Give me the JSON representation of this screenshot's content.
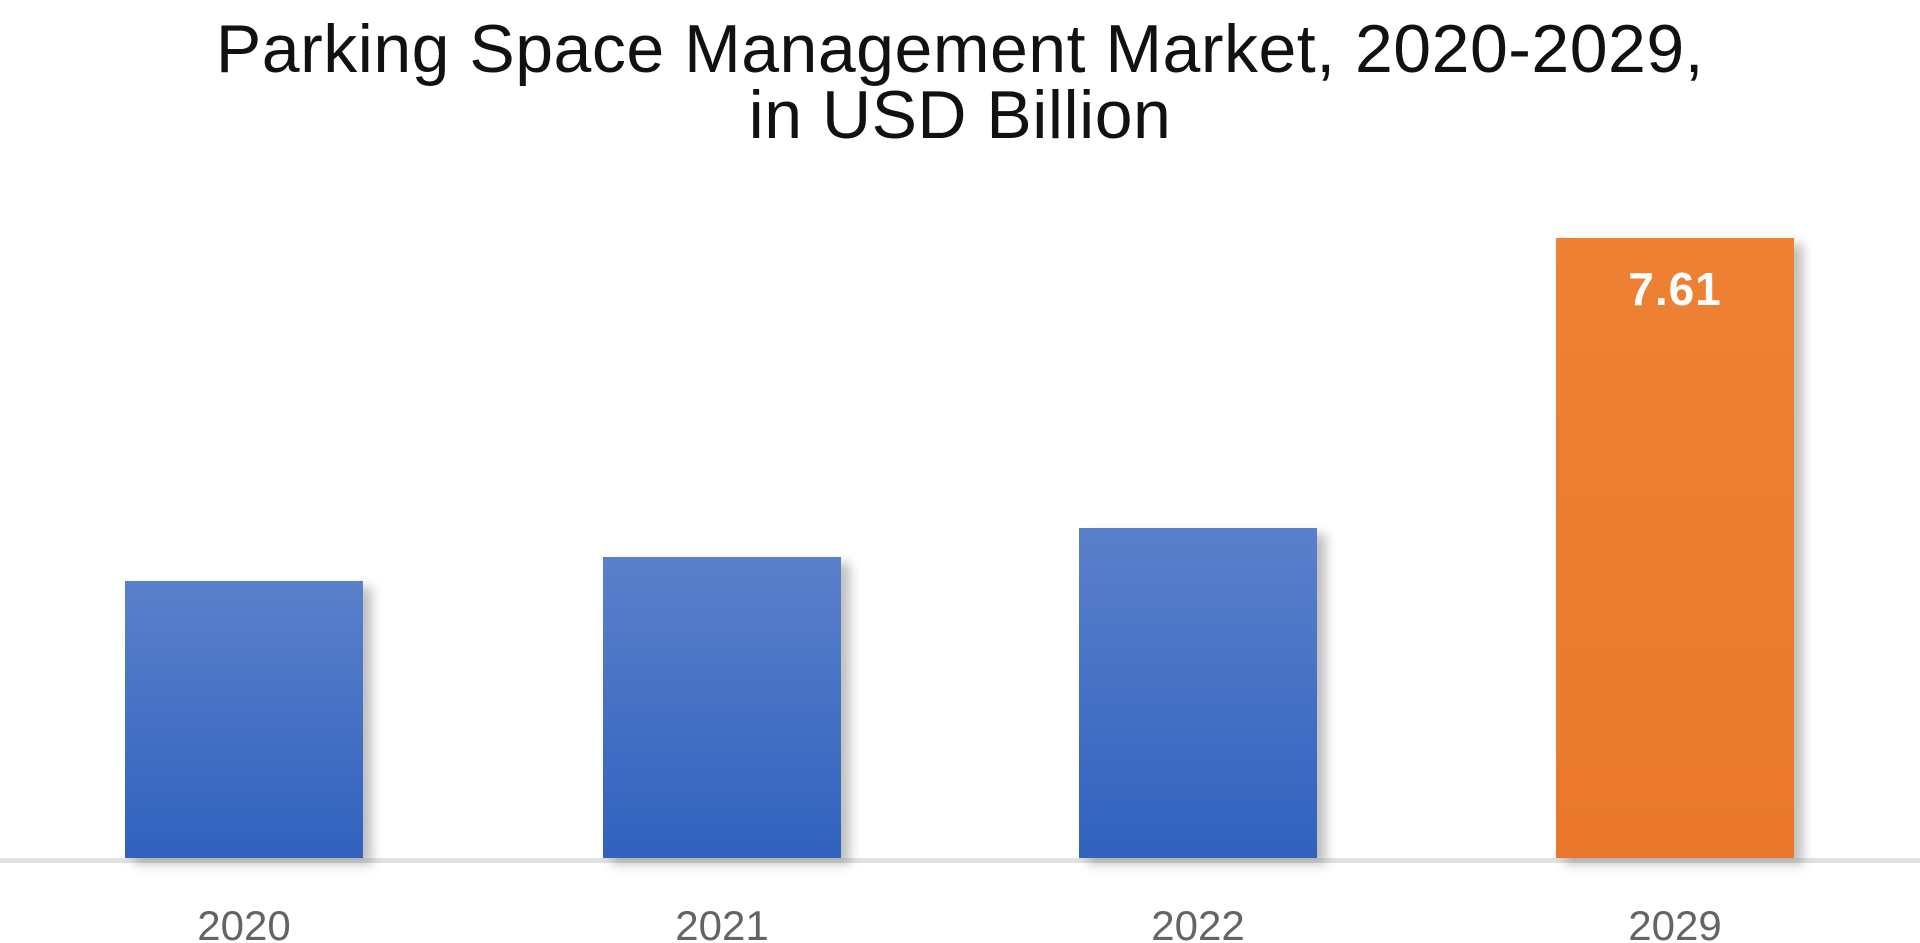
{
  "title": {
    "line1": "Parking Space Management Market, 2020-2029,",
    "line2": "in USD Billion"
  },
  "chart_data": {
    "type": "bar",
    "title": "Parking Space Management Market, 2020-2029, in USD Billion",
    "xlabel": "",
    "ylabel": "",
    "unit": "USD Billion",
    "categories": [
      "2020",
      "2021",
      "2022",
      "2029"
    ],
    "values": [
      3.4,
      3.7,
      4.05,
      7.61
    ],
    "value_labels": [
      "",
      "",
      "",
      "7.61"
    ],
    "ylim": [
      0,
      8.4
    ],
    "gridlines": false,
    "legend": false,
    "y_axis_visible": false,
    "bar_styles": [
      {
        "top": "#5B80CB",
        "bottom": "#3062BE"
      },
      {
        "top": "#5B80CB",
        "bottom": "#3062BE"
      },
      {
        "top": "#5B80CB",
        "bottom": "#3062BE"
      },
      {
        "top": "#EE8134",
        "bottom": "#E9782C"
      }
    ]
  },
  "colors": {
    "background": "#FFFFFF",
    "title_text": "#111111",
    "axis_line": "#E1E1E1",
    "tick_label": "#646464",
    "bar_value_label": "#FFFFFF",
    "bar_blue": "#4472C4",
    "bar_orange": "#ED7D31"
  }
}
